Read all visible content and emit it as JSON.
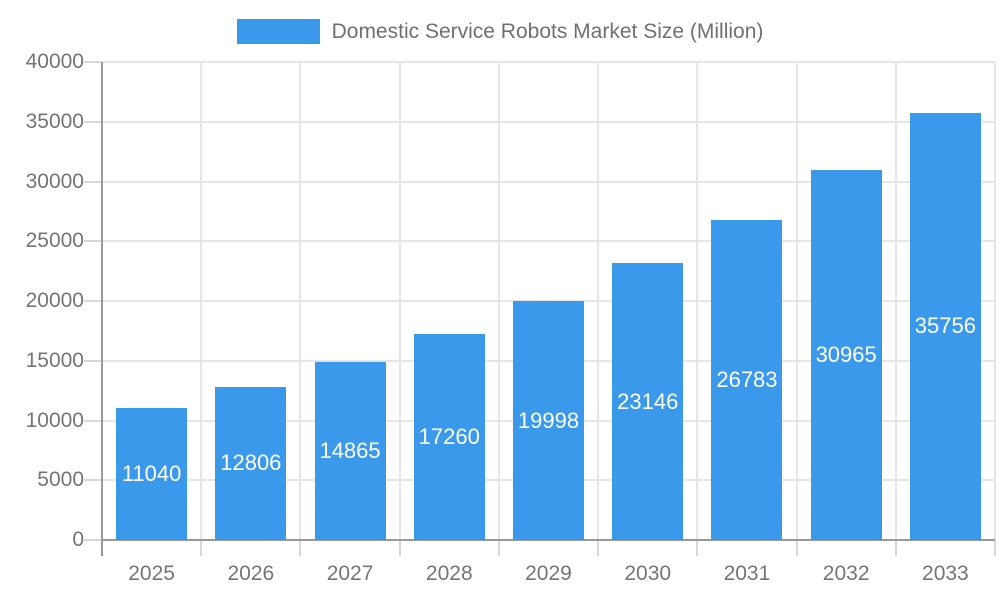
{
  "chart_data": {
    "type": "bar",
    "title": "Domestic Service Robots Market Size (Million)",
    "categories": [
      "2025",
      "2026",
      "2027",
      "2028",
      "2029",
      "2030",
      "2031",
      "2032",
      "2033"
    ],
    "values": [
      11040,
      12806,
      14865,
      17260,
      19998,
      23146,
      26783,
      30965,
      35756
    ],
    "xlabel": "",
    "ylabel": "",
    "ylim": [
      0,
      40000
    ],
    "ytick_step": 5000,
    "ytick_labels": [
      "0",
      "5000",
      "10000",
      "15000",
      "20000",
      "25000",
      "30000",
      "35000",
      "40000"
    ],
    "grid": "on",
    "legend_position": "top-center",
    "value_labels": "inside-center",
    "colors": {
      "bar": "#3B99EC",
      "value_label": "#FFFFFF",
      "axis": "#999999",
      "gridline": "#E6E6E6",
      "tick": "#D8D8D8",
      "tick_label": "#757575",
      "legend_text": "#707070",
      "background": "#FFFFFF"
    }
  }
}
